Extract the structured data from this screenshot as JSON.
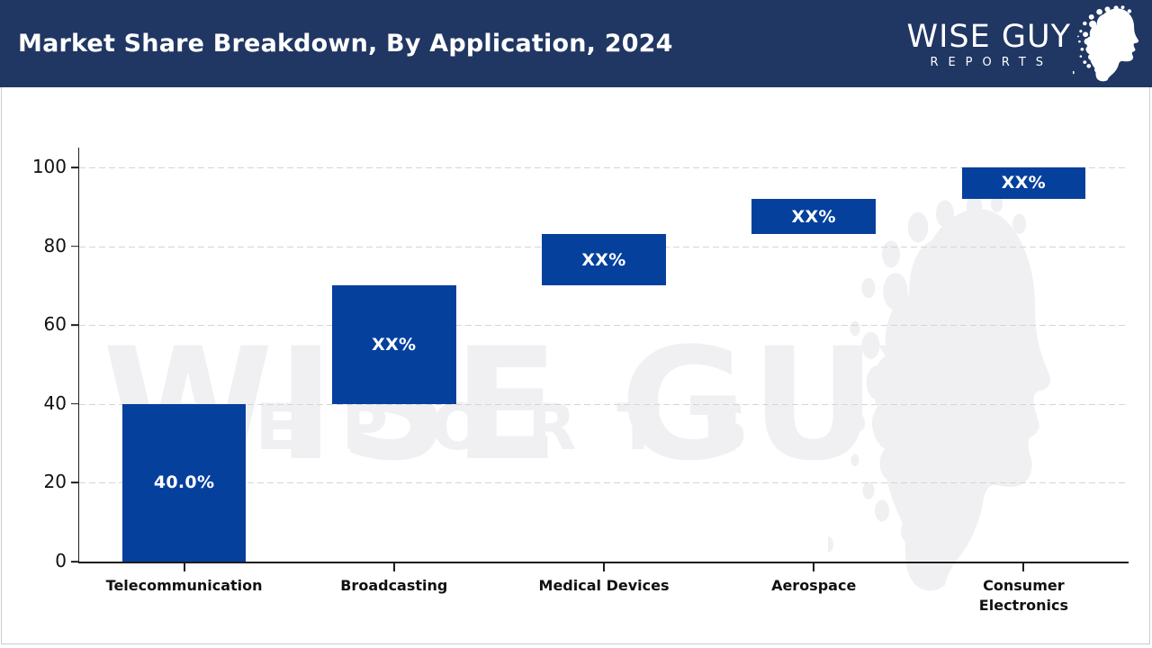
{
  "header": {
    "title": "Market Share Breakdown, By Application, 2024",
    "bg_color": "#203663",
    "logo": {
      "line1": "WISE GUY",
      "line2": "REPORTS"
    }
  },
  "watermark": {
    "line1": "WISE GUY",
    "line2": "REPORTS"
  },
  "chart_data": {
    "type": "bar",
    "variant": "waterfall",
    "title": "Market Share Breakdown, By Application, 2024",
    "categories": [
      "Telecommunication",
      "Broadcasting",
      "Medical Devices",
      "Aerospace",
      "Consumer Electronics"
    ],
    "x_tick_labels": [
      "Telecommunication",
      "Broadcasting",
      "Medical Devices",
      "Aerospace",
      "Consumer\nElectronics"
    ],
    "bars": [
      {
        "category": "Telecommunication",
        "start": 0,
        "end": 40,
        "value": 40,
        "label": "40.0%"
      },
      {
        "category": "Broadcasting",
        "start": 40,
        "end": 70,
        "value": 30,
        "label": "XX%"
      },
      {
        "category": "Medical Devices",
        "start": 70,
        "end": 83,
        "value": 13,
        "label": "XX%"
      },
      {
        "category": "Aerospace",
        "start": 83,
        "end": 92,
        "value": 9,
        "label": "XX%"
      },
      {
        "category": "Consumer Electronics",
        "start": 92,
        "end": 100,
        "value": 8,
        "label": "XX%"
      }
    ],
    "y_ticks": [
      0,
      20,
      40,
      60,
      80,
      100
    ],
    "ylim": [
      0,
      105
    ],
    "bar_color": "#05409d",
    "bar_width_fraction": 0.59,
    "grid": {
      "axis": "y",
      "style": "dashed",
      "color": "#d5d5d5"
    },
    "legend": "none",
    "axis_color": "#1c1c1c"
  }
}
